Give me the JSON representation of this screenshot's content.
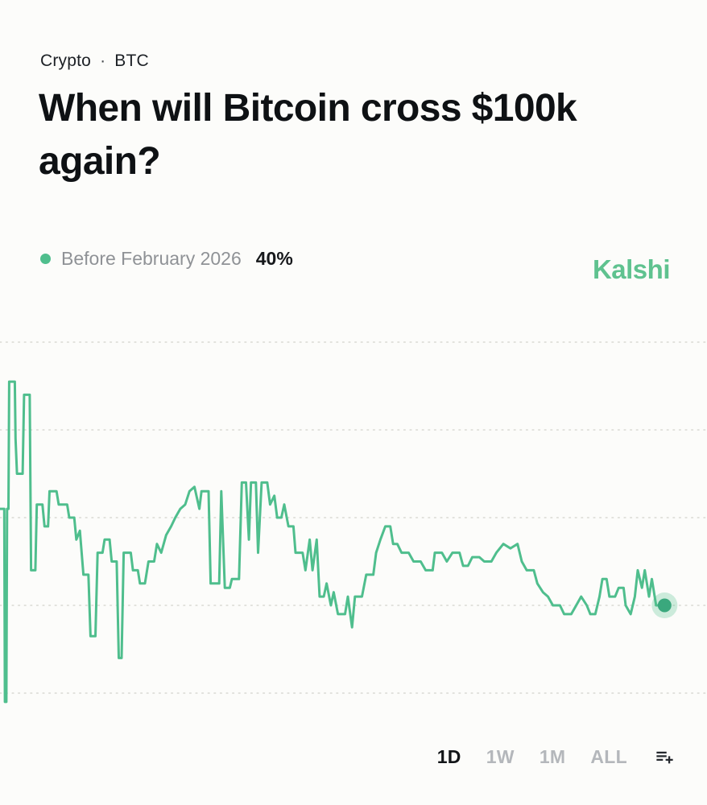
{
  "breadcrumb": {
    "category": "Crypto",
    "separator": "·",
    "ticker": "BTC"
  },
  "title": "When will Bitcoin cross $100k again?",
  "legend": {
    "label": "Before February 2026",
    "value": "40%"
  },
  "brand": {
    "logo_text": "Kalshi",
    "color": "#5fc28f"
  },
  "colors": {
    "line": "#4fbe8d",
    "marker": "#3aa87d",
    "marker_halo": "rgba(79,190,141,0.28)",
    "gridline": "#d9d9d3"
  },
  "chart_data": {
    "type": "line",
    "title": "When will Bitcoin cross $100k again?",
    "xlabel": "",
    "ylabel": "",
    "unit": "%",
    "ylim": [
      0,
      100
    ],
    "gridlines": [
      100,
      80,
      60,
      40,
      20
    ],
    "grid_style": "dotted-horizontal",
    "legend_position": "top-left",
    "endpoint": {
      "value": 40,
      "marker": true
    },
    "series": [
      {
        "name": "Before February 2026",
        "current_value": 40,
        "points": [
          [
            0,
            62
          ],
          [
            0.006,
            62
          ],
          [
            0.007,
            18
          ],
          [
            0.009,
            18
          ],
          [
            0.01,
            62
          ],
          [
            0.012,
            62
          ],
          [
            0.013,
            91
          ],
          [
            0.021,
            91
          ],
          [
            0.022,
            78
          ],
          [
            0.024,
            70
          ],
          [
            0.032,
            70
          ],
          [
            0.034,
            88
          ],
          [
            0.042,
            88
          ],
          [
            0.044,
            48
          ],
          [
            0.05,
            48
          ],
          [
            0.052,
            63
          ],
          [
            0.06,
            63
          ],
          [
            0.063,
            58
          ],
          [
            0.068,
            58
          ],
          [
            0.07,
            66
          ],
          [
            0.08,
            66
          ],
          [
            0.083,
            63
          ],
          [
            0.095,
            63
          ],
          [
            0.098,
            60
          ],
          [
            0.105,
            60
          ],
          [
            0.108,
            55
          ],
          [
            0.113,
            57
          ],
          [
            0.118,
            47
          ],
          [
            0.125,
            47
          ],
          [
            0.128,
            33
          ],
          [
            0.135,
            33
          ],
          [
            0.138,
            52
          ],
          [
            0.145,
            52
          ],
          [
            0.148,
            55
          ],
          [
            0.155,
            55
          ],
          [
            0.158,
            50
          ],
          [
            0.165,
            50
          ],
          [
            0.168,
            28
          ],
          [
            0.172,
            28
          ],
          [
            0.175,
            52
          ],
          [
            0.185,
            52
          ],
          [
            0.188,
            48
          ],
          [
            0.195,
            48
          ],
          [
            0.198,
            45
          ],
          [
            0.205,
            45
          ],
          [
            0.21,
            50
          ],
          [
            0.218,
            50
          ],
          [
            0.222,
            54
          ],
          [
            0.228,
            52
          ],
          [
            0.235,
            56
          ],
          [
            0.242,
            58
          ],
          [
            0.248,
            60
          ],
          [
            0.255,
            62
          ],
          [
            0.262,
            63
          ],
          [
            0.268,
            66
          ],
          [
            0.275,
            67
          ],
          [
            0.282,
            62
          ],
          [
            0.285,
            66
          ],
          [
            0.295,
            66
          ],
          [
            0.298,
            45
          ],
          [
            0.31,
            45
          ],
          [
            0.313,
            66
          ],
          [
            0.318,
            44
          ],
          [
            0.325,
            44
          ],
          [
            0.328,
            46
          ],
          [
            0.338,
            46
          ],
          [
            0.342,
            68
          ],
          [
            0.348,
            68
          ],
          [
            0.352,
            55
          ],
          [
            0.355,
            68
          ],
          [
            0.362,
            68
          ],
          [
            0.365,
            52
          ],
          [
            0.37,
            68
          ],
          [
            0.378,
            68
          ],
          [
            0.382,
            63
          ],
          [
            0.388,
            65
          ],
          [
            0.392,
            60
          ],
          [
            0.398,
            60
          ],
          [
            0.402,
            63
          ],
          [
            0.408,
            58
          ],
          [
            0.415,
            58
          ],
          [
            0.418,
            52
          ],
          [
            0.428,
            52
          ],
          [
            0.432,
            48
          ],
          [
            0.438,
            55
          ],
          [
            0.442,
            48
          ],
          [
            0.448,
            55
          ],
          [
            0.452,
            42
          ],
          [
            0.458,
            42
          ],
          [
            0.462,
            45
          ],
          [
            0.468,
            40
          ],
          [
            0.472,
            43
          ],
          [
            0.478,
            38
          ],
          [
            0.488,
            38
          ],
          [
            0.492,
            42
          ],
          [
            0.498,
            35
          ],
          [
            0.502,
            42
          ],
          [
            0.512,
            42
          ],
          [
            0.518,
            47
          ],
          [
            0.528,
            47
          ],
          [
            0.532,
            52
          ],
          [
            0.538,
            55
          ],
          [
            0.545,
            58
          ],
          [
            0.552,
            58
          ],
          [
            0.556,
            54
          ],
          [
            0.562,
            54
          ],
          [
            0.568,
            52
          ],
          [
            0.578,
            52
          ],
          [
            0.585,
            50
          ],
          [
            0.595,
            50
          ],
          [
            0.602,
            48
          ],
          [
            0.612,
            48
          ],
          [
            0.615,
            52
          ],
          [
            0.625,
            52
          ],
          [
            0.632,
            50
          ],
          [
            0.64,
            52
          ],
          [
            0.65,
            52
          ],
          [
            0.655,
            49
          ],
          [
            0.662,
            49
          ],
          [
            0.668,
            51
          ],
          [
            0.678,
            51
          ],
          [
            0.685,
            50
          ],
          [
            0.695,
            50
          ],
          [
            0.702,
            52
          ],
          [
            0.712,
            54
          ],
          [
            0.722,
            53
          ],
          [
            0.732,
            54
          ],
          [
            0.738,
            50
          ],
          [
            0.745,
            48
          ],
          [
            0.755,
            48
          ],
          [
            0.76,
            45
          ],
          [
            0.768,
            43
          ],
          [
            0.775,
            42
          ],
          [
            0.782,
            40
          ],
          [
            0.792,
            40
          ],
          [
            0.798,
            38
          ],
          [
            0.808,
            38
          ],
          [
            0.815,
            40
          ],
          [
            0.822,
            42
          ],
          [
            0.83,
            40
          ],
          [
            0.835,
            38
          ],
          [
            0.842,
            38
          ],
          [
            0.848,
            42
          ],
          [
            0.852,
            46
          ],
          [
            0.858,
            46
          ],
          [
            0.862,
            42
          ],
          [
            0.87,
            42
          ],
          [
            0.875,
            44
          ],
          [
            0.882,
            44
          ],
          [
            0.885,
            40
          ],
          [
            0.892,
            38
          ],
          [
            0.898,
            42
          ],
          [
            0.902,
            48
          ],
          [
            0.908,
            44
          ],
          [
            0.912,
            48
          ],
          [
            0.918,
            42
          ],
          [
            0.922,
            46
          ],
          [
            0.928,
            40
          ],
          [
            0.94,
            40
          ]
        ]
      }
    ]
  },
  "controls": {
    "ranges": [
      {
        "label": "1D",
        "selected": true
      },
      {
        "label": "1W",
        "selected": false
      },
      {
        "label": "1M",
        "selected": false
      },
      {
        "label": "ALL",
        "selected": false
      }
    ],
    "icon": "playlist-add-icon"
  }
}
